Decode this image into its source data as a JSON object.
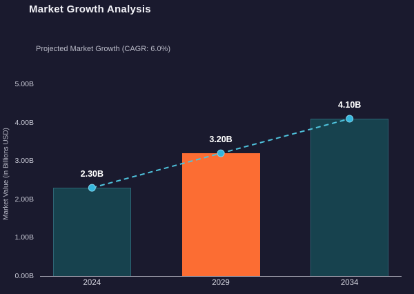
{
  "chart_data": {
    "type": "bar",
    "title": "Market Growth Analysis",
    "subtitle": "Projected Market Growth (CAGR: 6.0%)",
    "ylabel": "Market Value (in Billions USD)",
    "xlabel": "",
    "categories": [
      "2024",
      "2029",
      "2034"
    ],
    "values": [
      2.3,
      3.2,
      4.1
    ],
    "value_labels": [
      "2.30B",
      "3.20B",
      "4.10B"
    ],
    "ytick_labels": [
      "0.00B",
      "1.00B",
      "2.00B",
      "3.00B",
      "4.00B",
      "5.00B"
    ],
    "ylim": [
      0,
      5
    ],
    "grid": false,
    "legend": "none",
    "overlay_line": "dashed trend line with circular markers connecting bar tops",
    "colors": {
      "background": "#1a1a2e",
      "bar_fills": [
        "#17424e",
        "#fc6d33",
        "#17424e"
      ],
      "bar_borders": [
        "#2e6575",
        "#fc6d33",
        "#2e6575"
      ],
      "trend_line": "#4fc3dd",
      "marker_fill": "#35b6dd",
      "marker_stroke": "#7fd4ec",
      "title_text": "#f2f2f7",
      "subtitle_text": "#b9bac7",
      "tick_text": "#c9cad6",
      "value_label_text": "#ffffff",
      "axis_line": "#b4b4c0"
    }
  }
}
